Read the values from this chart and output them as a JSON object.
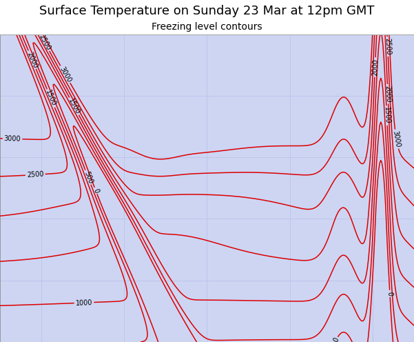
{
  "title": "Surface Temperature on Sunday 23 Mar at 12pm GMT",
  "subtitle": "Freezing level contours",
  "bg_color": "#cdd5f3",
  "map_bg": "#cdd5f3",
  "contour_color": "#dd0000",
  "contour_linewidth": 1.1,
  "grid_color": "#b8bfe8",
  "grid_linewidth": 0.5,
  "title_fontsize": 13,
  "subtitle_fontsize": 10,
  "fig_width": 6.01,
  "fig_height": 4.96,
  "dpi": 100,
  "xlim": [
    95,
    145
  ],
  "ylim": [
    -15,
    10
  ],
  "xticks": [
    100,
    110,
    120,
    130,
    140
  ],
  "yticks": [
    -10,
    -5,
    0,
    5,
    10
  ],
  "contour_levels": [
    0,
    500,
    1000,
    1500,
    2000,
    2500,
    3000
  ],
  "contour_labels": [
    0,
    500,
    1000,
    1500,
    2000,
    2500,
    3000
  ]
}
